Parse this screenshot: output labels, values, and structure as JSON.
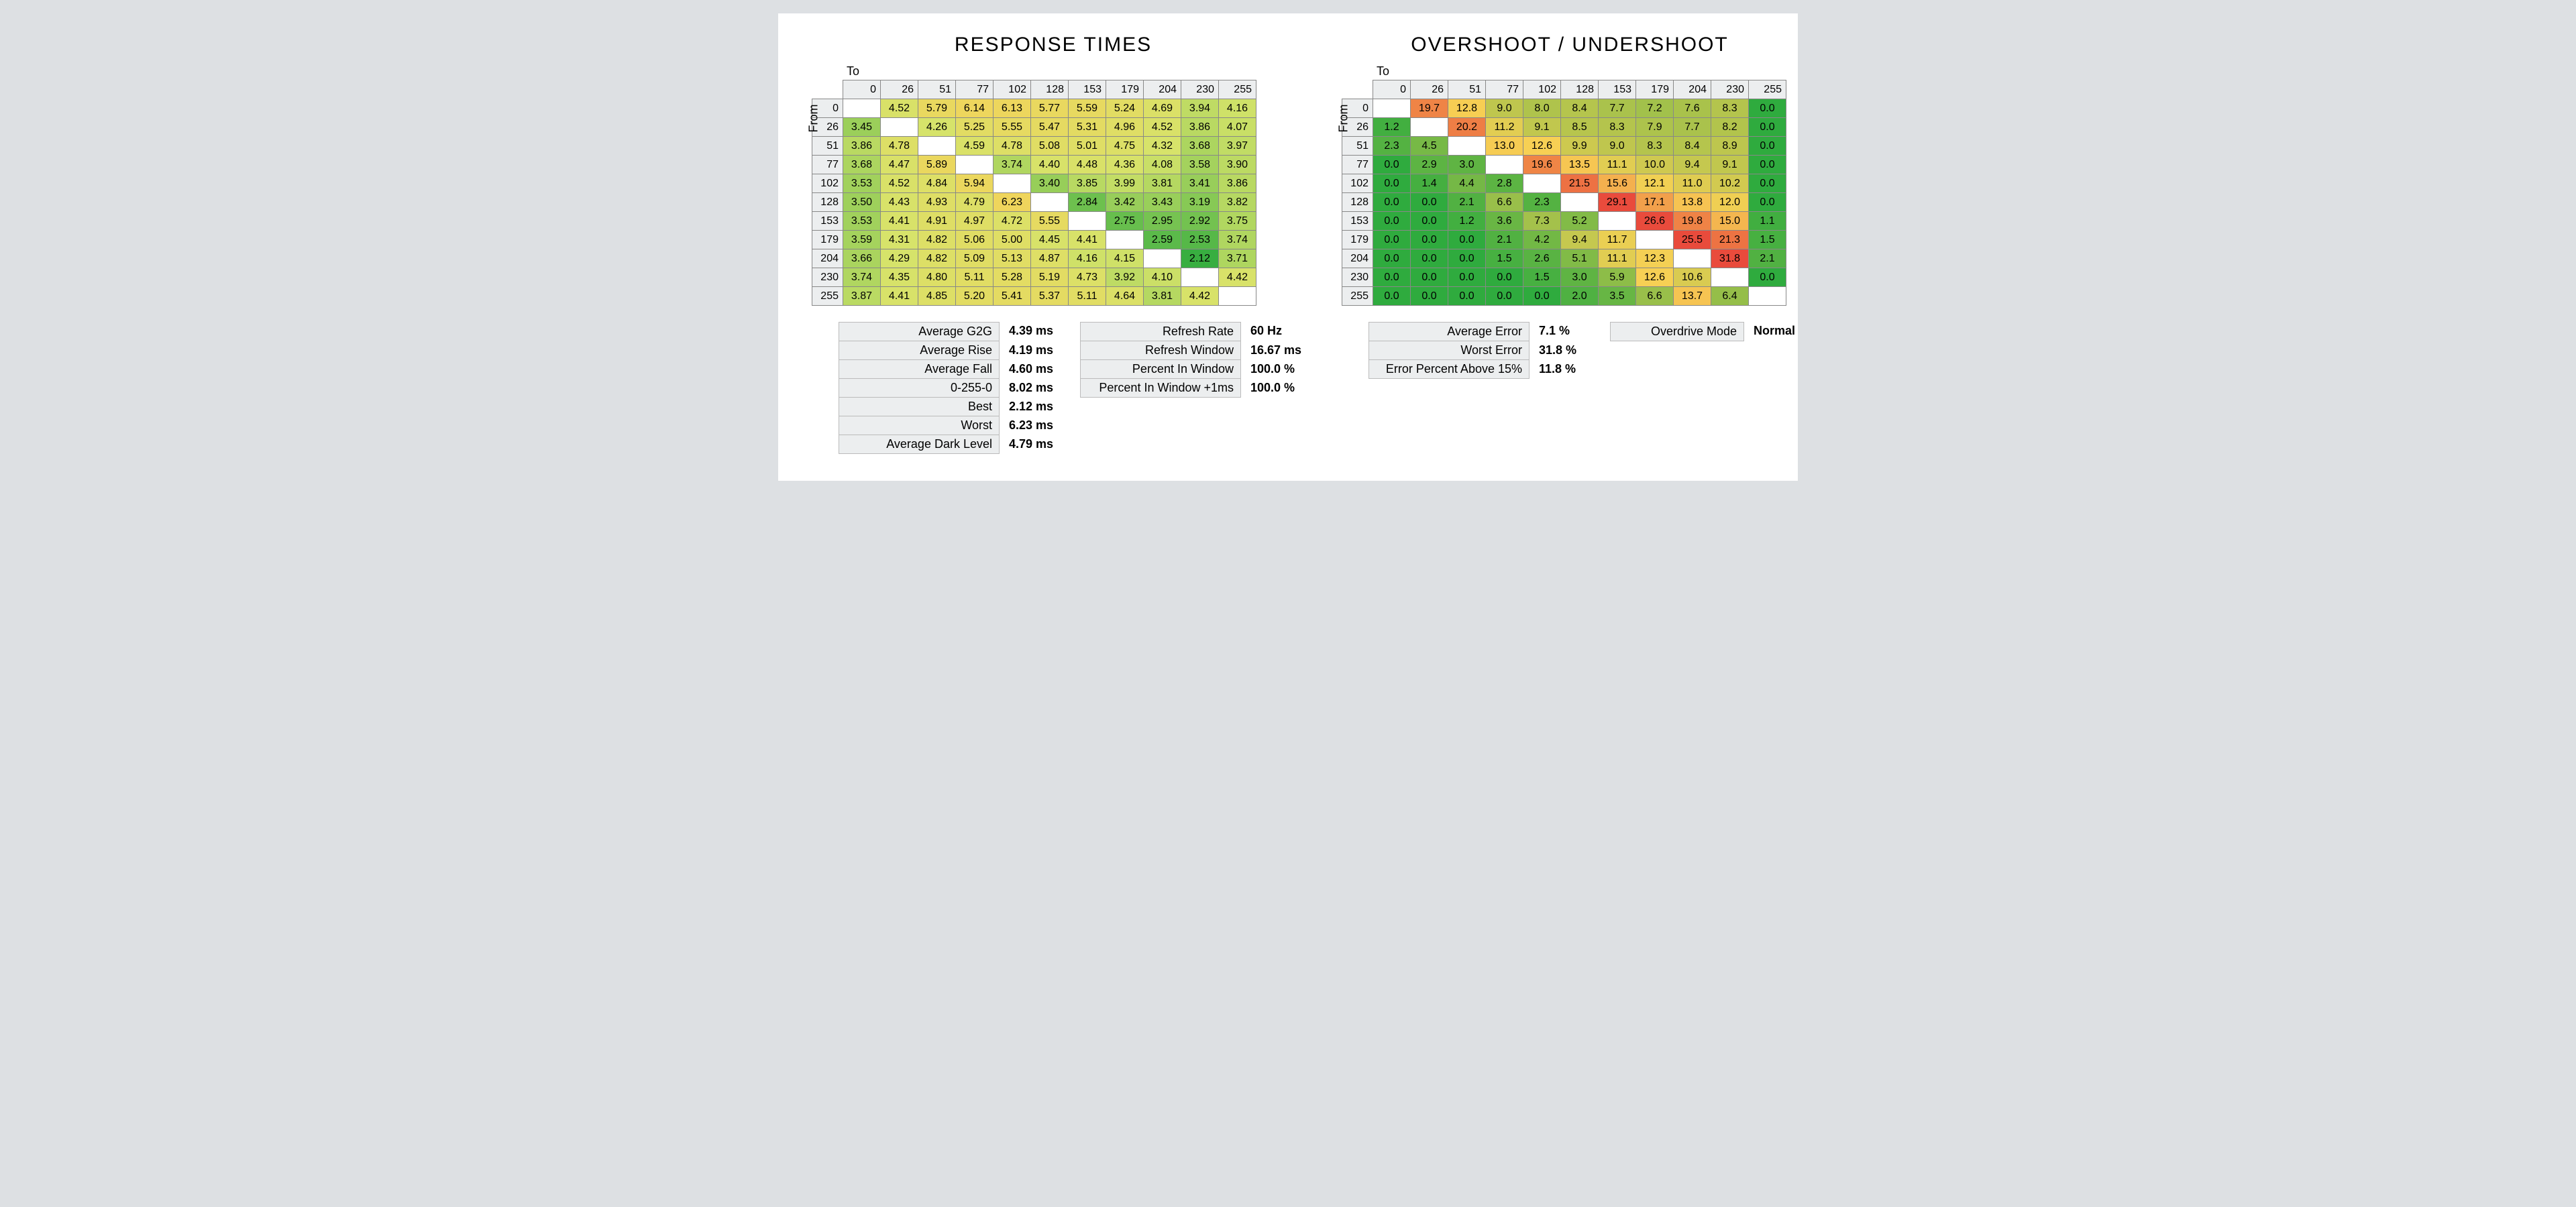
{
  "left_title": "RESPONSE TIMES",
  "right_title": "OVERSHOOT / UNDERSHOOT",
  "axis_to": "To",
  "axis_from": "From",
  "levels": [
    0,
    26,
    51,
    77,
    102,
    128,
    153,
    179,
    204,
    230,
    255
  ],
  "response_times": {
    "type": "heatmap",
    "min": 2.0,
    "max": 6.5,
    "color_low": "#2fab3e",
    "color_mid": "#d6e36a",
    "color_high": "#f2d35a",
    "diag_color": "#ffffff",
    "data": [
      [
        null,
        4.52,
        5.79,
        6.14,
        6.13,
        5.77,
        5.59,
        5.24,
        4.69,
        3.94,
        4.16
      ],
      [
        3.45,
        null,
        4.26,
        5.25,
        5.55,
        5.47,
        5.31,
        4.96,
        4.52,
        3.86,
        4.07
      ],
      [
        3.86,
        4.78,
        null,
        4.59,
        4.78,
        5.08,
        5.01,
        4.75,
        4.32,
        3.68,
        3.97
      ],
      [
        3.68,
        4.47,
        5.89,
        null,
        3.74,
        4.4,
        4.48,
        4.36,
        4.08,
        3.58,
        3.9
      ],
      [
        3.53,
        4.52,
        4.84,
        5.94,
        null,
        3.4,
        3.85,
        3.99,
        3.81,
        3.41,
        3.86
      ],
      [
        3.5,
        4.43,
        4.93,
        4.79,
        6.23,
        null,
        2.84,
        3.42,
        3.43,
        3.19,
        3.82
      ],
      [
        3.53,
        4.41,
        4.91,
        4.97,
        4.72,
        5.55,
        null,
        2.75,
        2.95,
        2.92,
        3.75
      ],
      [
        3.59,
        4.31,
        4.82,
        5.06,
        5.0,
        4.45,
        4.41,
        null,
        2.59,
        2.53,
        3.74
      ],
      [
        3.66,
        4.29,
        4.82,
        5.09,
        5.13,
        4.87,
        4.16,
        4.15,
        null,
        2.12,
        3.71
      ],
      [
        3.74,
        4.35,
        4.8,
        5.11,
        5.28,
        5.19,
        4.73,
        3.92,
        4.1,
        null,
        4.42
      ],
      [
        3.87,
        4.41,
        4.85,
        5.2,
        5.41,
        5.37,
        5.11,
        4.64,
        3.81,
        4.42,
        null
      ]
    ],
    "decimals": 2
  },
  "overshoot": {
    "type": "heatmap",
    "min": 0.0,
    "max": 25.0,
    "color_low": "#2fab3e",
    "color_mid": "#f7d154",
    "color_high": "#e94b3c",
    "diag_color": "#ffffff",
    "data": [
      [
        null,
        19.7,
        12.8,
        9.0,
        8.0,
        8.4,
        7.7,
        7.2,
        7.6,
        8.3,
        0.0
      ],
      [
        1.2,
        null,
        20.2,
        11.2,
        9.1,
        8.5,
        8.3,
        7.9,
        7.7,
        8.2,
        0.0
      ],
      [
        2.3,
        4.5,
        null,
        13.0,
        12.6,
        9.9,
        9.0,
        8.3,
        8.4,
        8.9,
        0.0
      ],
      [
        0.0,
        2.9,
        3.0,
        null,
        19.6,
        13.5,
        11.1,
        10.0,
        9.4,
        9.1,
        0.0
      ],
      [
        0.0,
        1.4,
        4.4,
        2.8,
        null,
        21.5,
        15.6,
        12.1,
        11.0,
        10.2,
        0.0
      ],
      [
        0.0,
        0.0,
        2.1,
        6.6,
        2.3,
        null,
        29.1,
        17.1,
        13.8,
        12.0,
        0.0
      ],
      [
        0.0,
        0.0,
        1.2,
        3.6,
        7.3,
        5.2,
        null,
        26.6,
        19.8,
        15.0,
        1.1
      ],
      [
        0.0,
        0.0,
        0.0,
        2.1,
        4.2,
        9.4,
        11.7,
        null,
        25.5,
        21.3,
        1.5
      ],
      [
        0.0,
        0.0,
        0.0,
        1.5,
        2.6,
        5.1,
        11.1,
        12.3,
        null,
        31.8,
        2.1
      ],
      [
        0.0,
        0.0,
        0.0,
        0.0,
        1.5,
        3.0,
        5.9,
        12.6,
        10.6,
        null,
        0.0
      ],
      [
        0.0,
        0.0,
        0.0,
        0.0,
        0.0,
        2.0,
        3.5,
        6.6,
        13.7,
        6.4,
        null
      ]
    ],
    "decimals": 1
  },
  "stats_left_a": [
    {
      "label": "Average G2G",
      "value": "4.39 ms"
    },
    {
      "label": "Average Rise",
      "value": "4.19 ms"
    },
    {
      "label": "Average Fall",
      "value": "4.60 ms"
    },
    {
      "label": "0-255-0",
      "value": "8.02 ms"
    },
    {
      "label": "Best",
      "value": "2.12 ms"
    },
    {
      "label": "Worst",
      "value": "6.23 ms"
    },
    {
      "label": "Average Dark Level",
      "value": "4.79 ms"
    }
  ],
  "stats_left_b": [
    {
      "label": "Refresh Rate",
      "value": "60 Hz"
    },
    {
      "label": "Refresh Window",
      "value": "16.67 ms"
    },
    {
      "label": "Percent In Window",
      "value": "100.0 %"
    },
    {
      "label": "Percent In Window +1ms",
      "value": "100.0 %"
    }
  ],
  "stats_right_a": [
    {
      "label": "Average Error",
      "value": "7.1 %"
    },
    {
      "label": "Worst Error",
      "value": "31.8 %"
    },
    {
      "label": "Error Percent Above 15%",
      "value": "11.8 %"
    }
  ],
  "stats_right_b": [
    {
      "label": "Overdrive Mode",
      "value": "Normal"
    }
  ],
  "cell_border_color": "#888888",
  "header_bg": "#eceeef",
  "page_bg": "#dde0e3",
  "canvas_bg": "#ffffff",
  "title_fontsize": 30,
  "cell_fontsize": 16,
  "stat_fontsize": 18
}
